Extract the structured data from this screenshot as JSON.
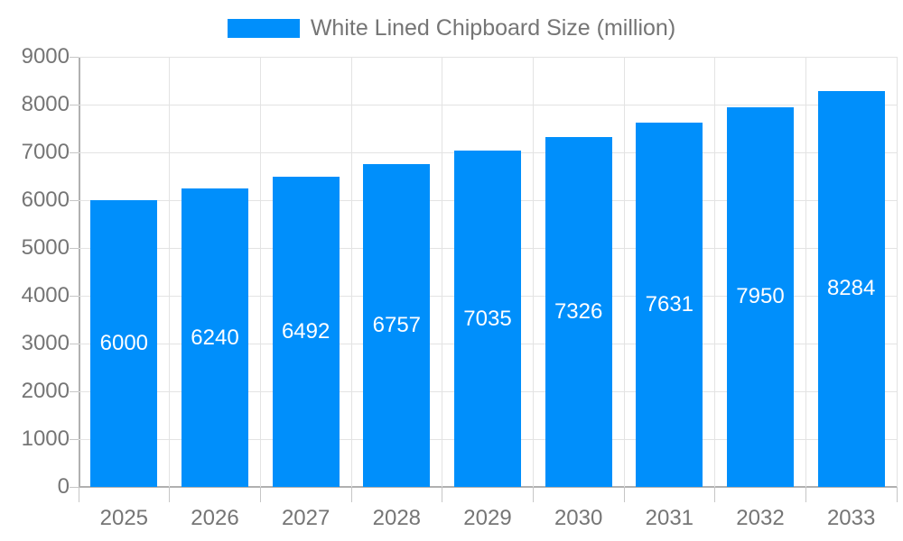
{
  "legend": {
    "label": "White Lined Chipboard Size (million)",
    "swatch_color": "#008FFB"
  },
  "chart_data": {
    "type": "bar",
    "title": "White Lined Chipboard Size (million)",
    "series_name": "White Lined Chipboard Size (million)",
    "categories": [
      "2025",
      "2026",
      "2027",
      "2028",
      "2029",
      "2030",
      "2031",
      "2032",
      "2033"
    ],
    "values": [
      6000,
      6240,
      6492,
      6757,
      7035,
      7326,
      7631,
      7950,
      8284
    ],
    "data_labels": [
      "6000",
      "6240",
      "6492",
      "6757",
      "7035",
      "7326",
      "7631",
      "7950",
      "8284"
    ],
    "xlabel": "",
    "ylabel": "",
    "ylim": [
      0,
      9000
    ],
    "yticks": [
      0,
      1000,
      2000,
      3000,
      4000,
      5000,
      6000,
      7000,
      8000,
      9000
    ],
    "grid": true,
    "legend_position": "top",
    "colors": {
      "bar": "#008FFB",
      "axis_label": "#757575",
      "data_label": "#ffffff",
      "gridline": "#e3e3e3",
      "axis_line": "#b0b0b0"
    }
  }
}
